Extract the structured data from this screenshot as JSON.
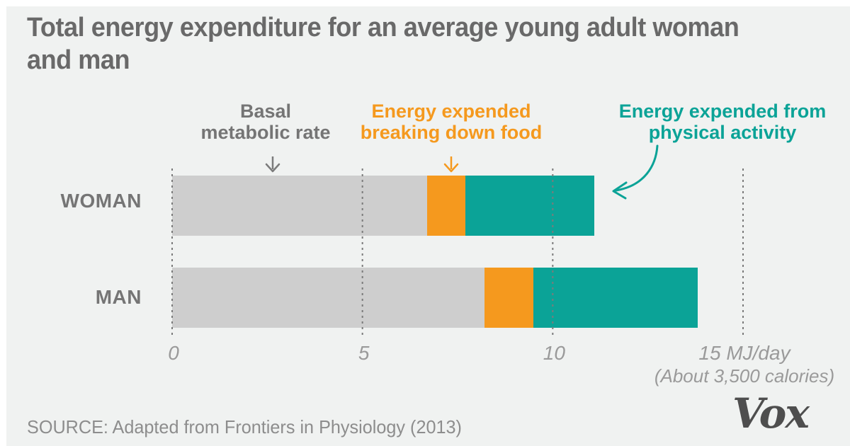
{
  "page": {
    "title": "Total energy expenditure for an average young adult woman and man",
    "source": "SOURCE: Adapted from Frontiers in Physiology (2013)",
    "brand": "Vox"
  },
  "colors": {
    "background": "#F0F2F1",
    "bar_basal": "#CECECE",
    "bar_food": "#F5991E",
    "bar_activity": "#0BA397",
    "title_text": "#696969",
    "row_label_text": "#757575",
    "axis_text": "#9A9A9A",
    "gridline": "#7B7B7B",
    "source_text": "#8D8D8D",
    "logo": "#4E4E4E"
  },
  "legend": [
    {
      "key": "basal",
      "label": "Basal metabolic rate",
      "color": "#757575"
    },
    {
      "key": "food",
      "label": "Energy expended breaking down food",
      "color": "#F5991E"
    },
    {
      "key": "activity",
      "label": "Energy expended from physical activity",
      "color": "#0BA397"
    }
  ],
  "chart_data": {
    "type": "bar",
    "orientation": "horizontal",
    "stacked": true,
    "categories": [
      "WOMAN",
      "MAN"
    ],
    "series": [
      {
        "name": "Basal metabolic rate",
        "color": "#CECECE",
        "values": [
          6.7,
          8.2
        ]
      },
      {
        "name": "Energy expended breaking down food",
        "color": "#F5991E",
        "values": [
          1.0,
          1.3
        ]
      },
      {
        "name": "Energy expended from physical activity",
        "color": "#0BA397",
        "values": [
          3.4,
          4.3
        ]
      }
    ],
    "totals_mj": [
      11.1,
      13.8
    ],
    "xlim": [
      0,
      15
    ],
    "xticks": [
      0,
      5,
      10,
      15
    ],
    "xtick_labels": [
      "0",
      "5",
      "10",
      "15 MJ/day"
    ],
    "x_axis_note": "(About 3,500 calories)",
    "unit": "MJ/day",
    "grid": "dashed-vertical",
    "legend_position": "top"
  }
}
